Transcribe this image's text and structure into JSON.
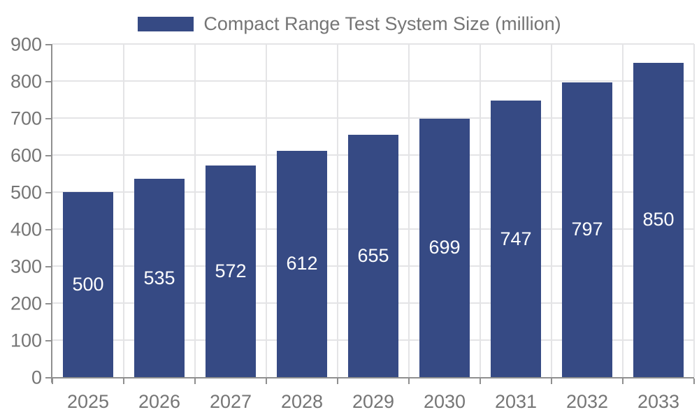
{
  "legend": {
    "label": "Compact Range Test System Size (million)"
  },
  "chart_data": {
    "type": "bar",
    "title": "",
    "categories": [
      "2025",
      "2026",
      "2027",
      "2028",
      "2029",
      "2030",
      "2031",
      "2032",
      "2033"
    ],
    "series": [
      {
        "name": "Compact Range Test System Size (million)",
        "values": [
          500,
          535,
          572,
          612,
          655,
          699,
          747,
          797,
          850
        ]
      }
    ],
    "xlabel": "",
    "ylabel": "",
    "ylim": [
      0,
      900
    ],
    "yticks": [
      0,
      100,
      200,
      300,
      400,
      500,
      600,
      700,
      800,
      900
    ],
    "grid": true,
    "legend_position": "top-center",
    "bar_color": "#364A84",
    "bar_label_color": "#FFFFFF",
    "tick_label_color": "#757575",
    "axis_line_color": "#8F8F8F",
    "grid_color": "#E4E4E6",
    "background_color": "#FFFFFF"
  }
}
